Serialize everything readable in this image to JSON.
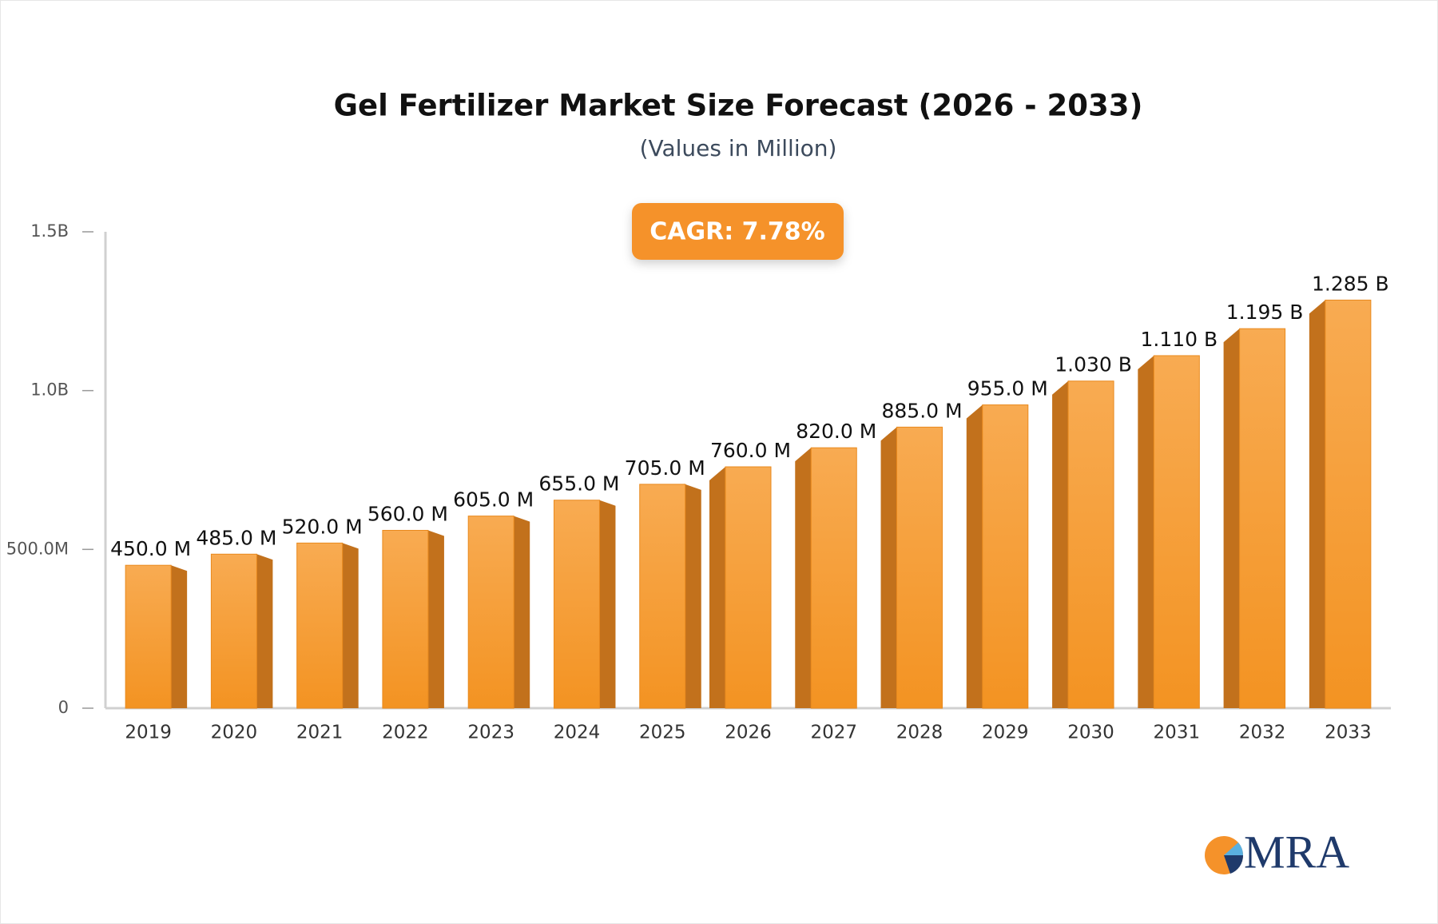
{
  "chart_data": {
    "type": "bar3d",
    "title": "Gel Fertilizer Market Size Forecast (2026 - 2033)",
    "subtitle": "(Values in Million)",
    "annotation": "CAGR: 7.78%",
    "brand": "MRA",
    "categories": [
      "2019",
      "2020",
      "2021",
      "2022",
      "2023",
      "2024",
      "2025",
      "2026",
      "2027",
      "2028",
      "2029",
      "2030",
      "2031",
      "2032",
      "2033"
    ],
    "values": [
      450,
      485,
      520,
      560,
      605,
      655,
      705,
      760,
      820,
      885,
      955,
      1030,
      1110,
      1195,
      1285
    ],
    "value_labels": [
      "450.0 M",
      "485.0 M",
      "520.0 M",
      "560.0 M",
      "605.0 M",
      "655.0 M",
      "705.0 M",
      "760.0 M",
      "820.0 M",
      "885.0 M",
      "955.0 M",
      "1.030 B",
      "1.110 B",
      "1.195 B",
      "1.285 B"
    ],
    "color": "#f5a040",
    "ylim": [
      0,
      1500
    ],
    "yticks": [
      0,
      {
        "value": 500,
        "label": "500.0M"
      },
      {
        "value": 1000,
        "label": "1.0B"
      },
      {
        "value": 1500,
        "label": "1.5B"
      }
    ]
  }
}
